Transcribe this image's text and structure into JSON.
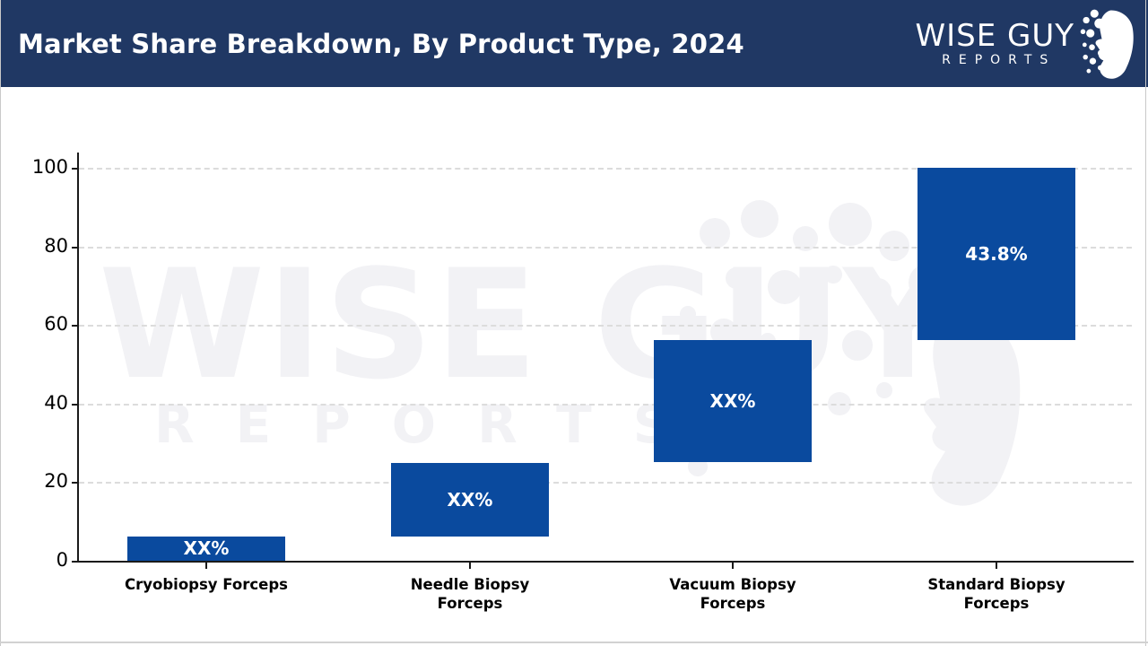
{
  "header": {
    "title": "Market Share Breakdown, By Product Type, 2024",
    "bg_color": "#203864",
    "logo": {
      "line1": "WISE GUY",
      "line2": "REPORTS"
    }
  },
  "watermark": {
    "line1": "WISE GUY",
    "line2": "REPORTS"
  },
  "chart_data": {
    "type": "bar",
    "variant": "waterfall-stacked-progression",
    "title": "Market Share Breakdown, By Product Type, 2024",
    "categories": [
      "Cryobiopsy Forceps",
      "Needle Biopsy Forceps",
      "Vacuum Biopsy Forceps",
      "Standard Biopsy Forceps"
    ],
    "categories_display": [
      [
        "Cryobiopsy Forceps"
      ],
      [
        "Needle Biopsy",
        "Forceps"
      ],
      [
        "Vacuum Biopsy",
        "Forceps"
      ],
      [
        "Standard Biopsy",
        "Forceps"
      ]
    ],
    "segments": [
      {
        "category": "Cryobiopsy Forceps",
        "start": 0,
        "end": 6.2,
        "label": "XX%"
      },
      {
        "category": "Needle Biopsy Forceps",
        "start": 6.2,
        "end": 25,
        "label": "XX%"
      },
      {
        "category": "Vacuum Biopsy Forceps",
        "start": 25,
        "end": 56.2,
        "label": "XX%"
      },
      {
        "category": "Standard Biopsy Forceps",
        "start": 56.2,
        "end": 100,
        "label": "43.8%"
      }
    ],
    "xlabel": "",
    "ylabel": "",
    "ylim": [
      0,
      100
    ],
    "yticks": [
      0,
      20,
      40,
      60,
      80,
      100
    ],
    "grid": "horizontal-dashed",
    "legend": "none",
    "bar_color": "#0a4a9e",
    "bar_label_color": "#ffffff",
    "axis_color": "#1a1a1a",
    "gridline_color": "#dcdcdc"
  }
}
